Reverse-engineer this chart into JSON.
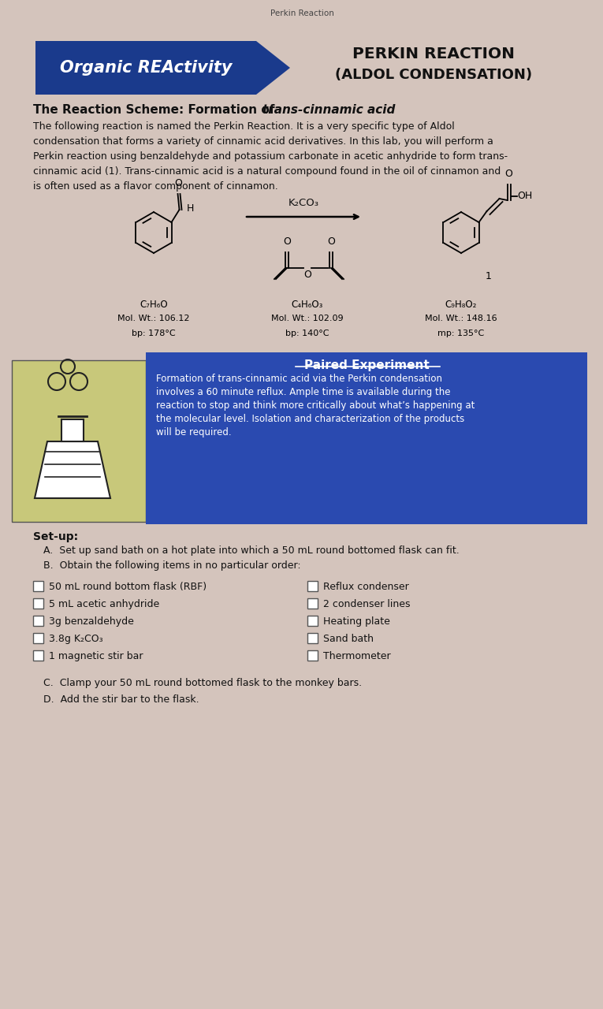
{
  "bg_color": "#c8b8b0",
  "page_bg": "#d4c4bc",
  "header_top_text": "Perkin Reaction",
  "header_arrow_color": "#1a3a8c",
  "header_arrow_text": "Organic REActivity",
  "header_title_line1": "PERKIN REACTION",
  "header_title_line2": "(ALDOL CONDENSATION)",
  "section_title": "The Reaction Scheme: Formation of ",
  "section_title_italic": "trans-cinnamic acid",
  "body_text_lines": [
    "The following reaction is named the Perkin Reaction. It is a very specific type of Aldol",
    "condensation that forms a variety of cinnamic acid derivatives. In this lab, you will perform a",
    "Perkin reaction using benzaldehyde and potassium carbonate in acetic anhydride to form trans-",
    "cinnamic acid (1). Trans-cinnamic acid is a natural compound found in the oil of cinnamon and",
    "is often used as a flavor component of cinnamon."
  ],
  "paired_title": "Paired Experiment",
  "paired_text_lines": [
    "Formation of trans-cinnamic acid via the Perkin condensation",
    "involves a 60 minute reflux. Ample time is available during the",
    "reaction to stop and think more critically about what’s happening at",
    "the molecular level. Isolation and characterization of the products",
    "will be required."
  ],
  "paired_box_color": "#2a4ab0",
  "paired_text_color": "#ffffff",
  "setup_title": "Set-up:",
  "setup_items": [
    "A.  Set up sand bath on a hot plate into which a 50 mL round bottomed flask can fit.",
    "B.  Obtain the following items in no particular order:"
  ],
  "left_checklist": [
    "50 mL round bottom flask (RBF)",
    "5 mL acetic anhydride",
    "3g benzaldehyde",
    "3.8g K₂CO₃",
    "1 magnetic stir bar"
  ],
  "right_checklist": [
    "Reflux condenser",
    "2 condenser lines",
    "Heating plate",
    "Sand bath",
    "Thermometer"
  ],
  "setup_cd": [
    "C.  Clamp your 50 mL round bottomed flask to the monkey bars.",
    "D.  Add the stir bar to the flask."
  ],
  "compound1_formula": "C₇H₆O",
  "compound1_mw": "Mol. Wt.: 106.12",
  "compound1_bp": "bp: 178°C",
  "compound2_formula": "C₄H₆O₃",
  "compound2_mw": "Mol. Wt.: 102.09",
  "compound2_bp": "bp: 140°C",
  "compound3_formula": "C₉H₈O₂",
  "compound3_mw": "Mol. Wt.: 148.16",
  "compound3_bp": "mp: 135°C",
  "reagent_label": "K₂CO₃"
}
